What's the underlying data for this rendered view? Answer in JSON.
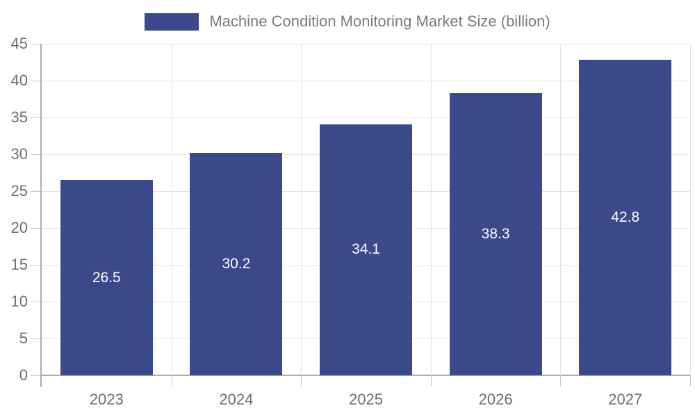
{
  "legend": {
    "label": "Machine Condition Monitoring Market Size (billion)"
  },
  "chart_data": {
    "type": "bar",
    "title": "Machine Condition Monitoring Market Size (billion)",
    "categories": [
      "2023",
      "2024",
      "2025",
      "2026",
      "2027"
    ],
    "values": [
      26.5,
      30.2,
      34.1,
      38.3,
      42.8
    ],
    "data_labels": [
      "26.5",
      "30.2",
      "34.1",
      "38.3",
      "42.8"
    ],
    "ylim": [
      0,
      45
    ],
    "yticks": [
      0,
      5,
      10,
      15,
      20,
      25,
      30,
      35,
      40,
      45
    ],
    "xlabel": "",
    "ylabel": "",
    "grid": true,
    "legend_position": "top-center",
    "colors": {
      "bar": "#3A4A8A",
      "bar_label": "#FFFFFF",
      "axis_line": "#ADADAD",
      "tick": "#C9C9C9",
      "gridline": "#E3E3E3",
      "tick_label": "#6E6E6E",
      "legend_text": "#7A7A7A",
      "background": "#FFFFFF"
    }
  }
}
